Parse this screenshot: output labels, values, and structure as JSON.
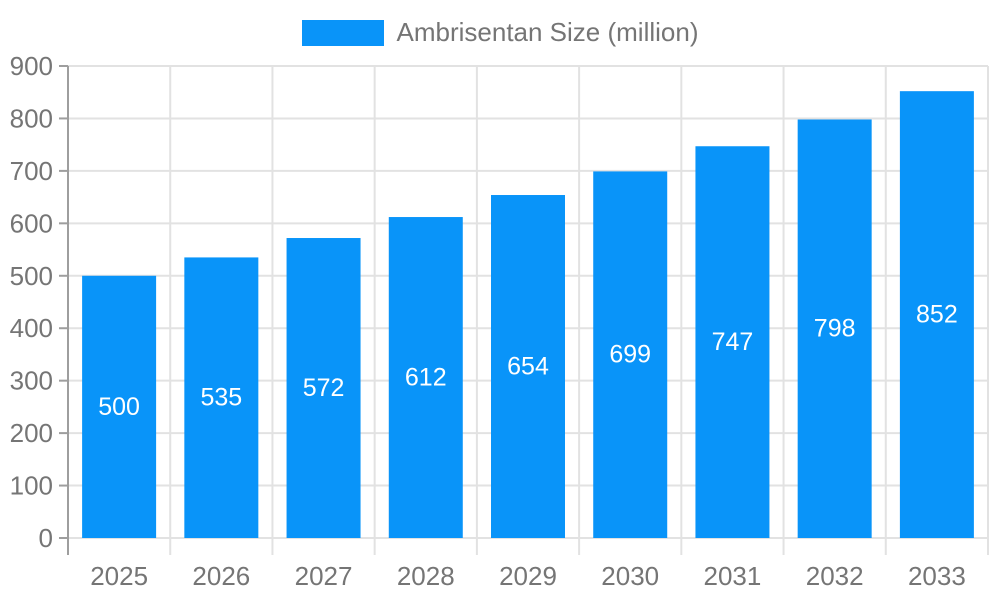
{
  "legend": {
    "label": "Ambrisentan Size (million)"
  },
  "chart_data": {
    "type": "bar",
    "title": "",
    "xlabel": "",
    "ylabel": "",
    "categories": [
      "2025",
      "2026",
      "2027",
      "2028",
      "2029",
      "2030",
      "2031",
      "2032",
      "2033"
    ],
    "series": [
      {
        "name": "Ambrisentan Size (million)",
        "values": [
          500,
          535,
          572,
          612,
          654,
          699,
          747,
          798,
          852
        ]
      }
    ],
    "value_labels": [
      "500",
      "535",
      "572",
      "612",
      "654",
      "699",
      "747",
      "798",
      "852"
    ],
    "ylim": [
      0,
      900
    ],
    "ytick_step": 100,
    "ytick_labels": [
      "0",
      "100",
      "200",
      "300",
      "400",
      "500",
      "600",
      "700",
      "800",
      "900"
    ],
    "grid": true,
    "legend_position": "top",
    "colors": {
      "bar": "#0994f9",
      "grid": "#e2e2e2",
      "axis": "#9e9e9e",
      "tick_text": "#757575",
      "value_text": "#ffffff"
    }
  }
}
